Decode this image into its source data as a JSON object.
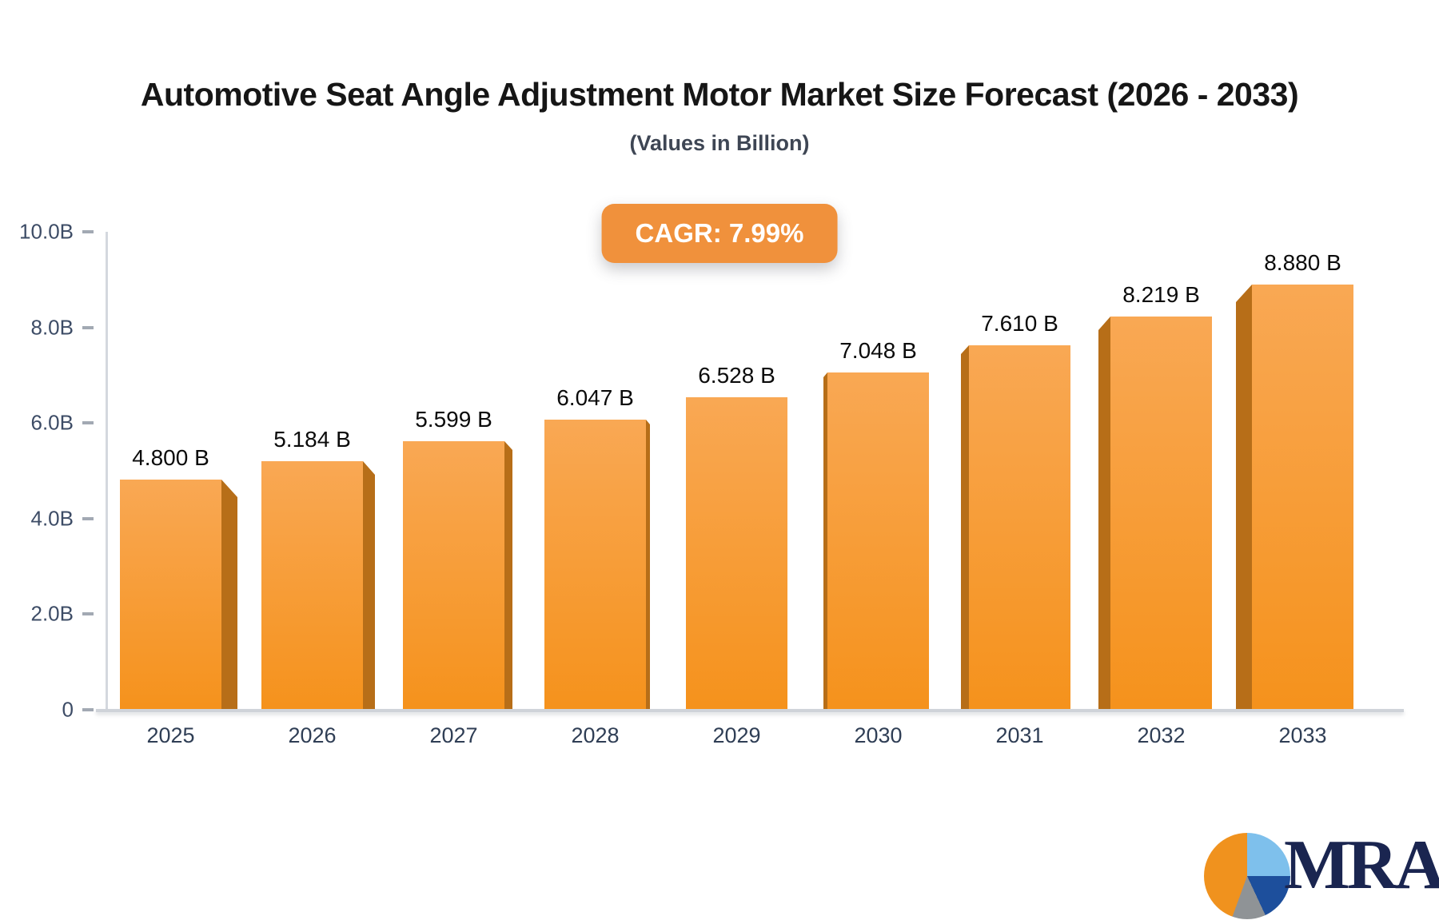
{
  "title": "Automotive Seat Angle Adjustment Motor Market Size Forecast (2026 - 2033)",
  "subtitle": "(Values in Billion)",
  "badge": {
    "label": "CAGR: 7.99%",
    "background": "#F0913C",
    "text_color": "#FFFFFF"
  },
  "logo": {
    "text": "MRA",
    "pie_colors": {
      "orange": "#F0921E",
      "light_blue": "#7EC0EC",
      "navy": "#1D4F9C",
      "gray": "#8F9396"
    },
    "text_color": "#1A2550"
  },
  "chart_data": {
    "type": "bar",
    "title": "Automotive Seat Angle Adjustment Motor Market Size Forecast (2026 - 2033)",
    "subtitle": "(Values in Billion)",
    "xlabel": "",
    "ylabel": "",
    "ylim": [
      0,
      10
    ],
    "grid": false,
    "legend": "none",
    "categories": [
      "2025",
      "2026",
      "2027",
      "2028",
      "2029",
      "2030",
      "2031",
      "2032",
      "2033"
    ],
    "values": [
      4.8,
      5.184,
      5.599,
      6.047,
      6.528,
      7.048,
      7.61,
      8.219,
      8.88
    ],
    "value_labels": [
      "4.800 B",
      "5.184 B",
      "5.599 B",
      "6.047 B",
      "6.528 B",
      "7.048 B",
      "7.610 B",
      "8.219 B",
      "8.880 B"
    ],
    "yticks": [
      {
        "label": "10.0B",
        "value": 10
      },
      {
        "label": "8.0B",
        "value": 8
      },
      {
        "label": "6.0B",
        "value": 6
      },
      {
        "label": "4.0B",
        "value": 4
      },
      {
        "label": "2.0B",
        "value": 2
      },
      {
        "label": "0",
        "value": 0
      }
    ],
    "colors": {
      "bar_top": "#F9A854",
      "bar_bottom": "#F5921C",
      "bar_side": "#B76E18",
      "axis_line": "#D4D8DE",
      "tick_dash": "#A2A9B3",
      "tick_label": "#3D4C66",
      "x_label": "#2F3E55",
      "value_label": "#0B0B0B"
    }
  }
}
